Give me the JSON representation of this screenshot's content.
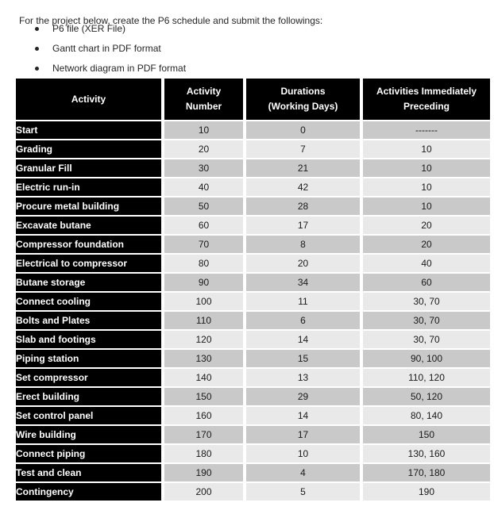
{
  "intro": {
    "paragraph": "For the project below, create the P6 schedule and submit the followings:",
    "bullets": [
      "P6 file (XER File)",
      "Gantt chart in PDF format",
      "Network diagram in PDF format"
    ]
  },
  "table": {
    "headers": {
      "activity": "Activity",
      "activity_number_line1": "Activity",
      "activity_number_line2": "Number",
      "durations_line1": "Durations",
      "durations_line2": "(Working Days)",
      "preceding_line1": "Activities Immediately",
      "preceding_line2": "Preceding"
    },
    "rows": [
      {
        "activity": "Start",
        "number": "10",
        "duration": "0",
        "preceding": "-------"
      },
      {
        "activity": "Grading",
        "number": "20",
        "duration": "7",
        "preceding": "10"
      },
      {
        "activity": "Granular Fill",
        "number": "30",
        "duration": "21",
        "preceding": "10"
      },
      {
        "activity": "Electric run-in",
        "number": "40",
        "duration": "42",
        "preceding": "10"
      },
      {
        "activity": "Procure metal building",
        "number": "50",
        "duration": "28",
        "preceding": "10"
      },
      {
        "activity": "Excavate butane",
        "number": "60",
        "duration": "17",
        "preceding": "20"
      },
      {
        "activity": "Compressor foundation",
        "number": "70",
        "duration": "8",
        "preceding": "20"
      },
      {
        "activity": "Electrical to compressor",
        "number": "80",
        "duration": "20",
        "preceding": "40"
      },
      {
        "activity": "Butane storage",
        "number": "90",
        "duration": "34",
        "preceding": "60"
      },
      {
        "activity": "Connect cooling",
        "number": "100",
        "duration": "11",
        "preceding": "30, 70"
      },
      {
        "activity": "Bolts and Plates",
        "number": "110",
        "duration": "6",
        "preceding": "30, 70"
      },
      {
        "activity": "Slab and footings",
        "number": "120",
        "duration": "14",
        "preceding": "30, 70"
      },
      {
        "activity": "Piping station",
        "number": "130",
        "duration": "15",
        "preceding": "90, 100"
      },
      {
        "activity": "Set compressor",
        "number": "140",
        "duration": "13",
        "preceding": "110, 120"
      },
      {
        "activity": "Erect building",
        "number": "150",
        "duration": "29",
        "preceding": "50, 120"
      },
      {
        "activity": "Set control panel",
        "number": "160",
        "duration": "14",
        "preceding": "80, 140"
      },
      {
        "activity": "Wire building",
        "number": "170",
        "duration": "17",
        "preceding": "150"
      },
      {
        "activity": "Connect piping",
        "number": "180",
        "duration": "10",
        "preceding": "130, 160"
      },
      {
        "activity": "Test and clean",
        "number": "190",
        "duration": "4",
        "preceding": "170, 180"
      },
      {
        "activity": "Contingency",
        "number": "200",
        "duration": "5",
        "preceding": "190"
      }
    ]
  },
  "colors": {
    "header_bg": "#000000",
    "header_text": "#ffffff",
    "row_dark": "#c9c9c9",
    "row_light": "#e9e9e9",
    "body_text": "#262626"
  }
}
